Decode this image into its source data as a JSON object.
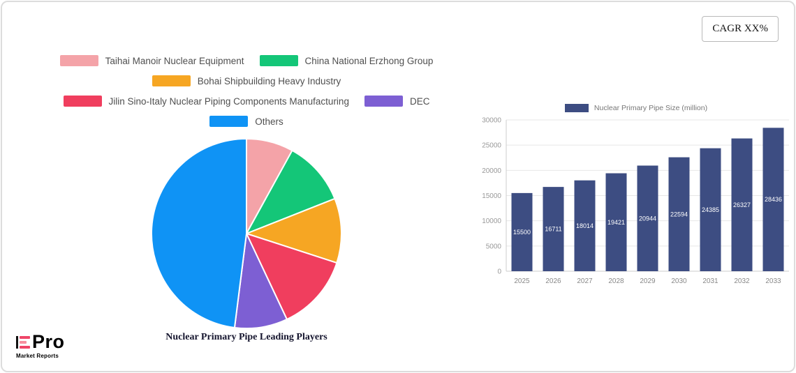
{
  "frame": {
    "cagr_label": "CAGR XX%"
  },
  "logo": {
    "name": "Pro",
    "tagline": "Market Reports"
  },
  "chart_data": [
    {
      "type": "pie",
      "title": "Nuclear Primary Pipe Leading Players",
      "labels": [
        "Taihai Manoir Nuclear Equipment",
        "China National Erzhong Group",
        "Bohai Shipbuilding Heavy Industry",
        "Jilin Sino-Italy Nuclear Piping Components Manufacturing",
        "DEC",
        "Others"
      ],
      "values_percent": [
        8,
        11,
        11,
        13,
        9,
        48
      ],
      "colors": [
        "#f4a3a8",
        "#14c678",
        "#f6a623",
        "#f03e5e",
        "#7d5fd3",
        "#0f93f5"
      ],
      "legend_rows": [
        [
          0,
          1
        ],
        [
          2
        ],
        [
          3,
          4
        ],
        [
          5
        ]
      ],
      "legend_position": "top"
    },
    {
      "type": "bar",
      "legend": "Nuclear Primary Pipe Size (million)",
      "categories": [
        "2025",
        "2026",
        "2027",
        "2028",
        "2029",
        "2030",
        "2031",
        "2032",
        "2033"
      ],
      "values": [
        15500,
        16711,
        18014,
        19421,
        20944,
        22594,
        24385,
        26327,
        28436
      ],
      "ylim": [
        0,
        30000
      ],
      "yticks": [
        0,
        5000,
        10000,
        15000,
        20000,
        25000,
        30000
      ],
      "bar_color": "#3d4d82",
      "grid": true,
      "value_labels": "inside-white"
    }
  ]
}
